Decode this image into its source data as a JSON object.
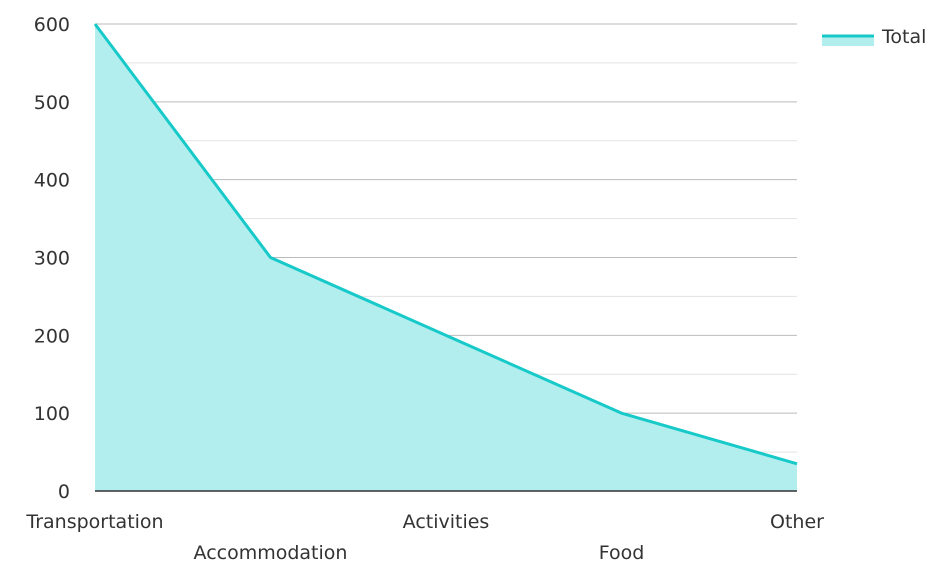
{
  "chart_data": {
    "type": "area",
    "title": "",
    "xlabel": "",
    "ylabel": "",
    "categories": [
      "Transportation",
      "Accommodation",
      "Activities",
      "Food",
      "Other"
    ],
    "series": [
      {
        "name": "Total",
        "values": [
          600,
          300,
          200,
          100,
          35
        ]
      }
    ],
    "ylim": [
      0,
      600
    ],
    "yticks": [
      0,
      100,
      200,
      300,
      400,
      500,
      600
    ],
    "grid": true,
    "legend": "top-right",
    "colors": {
      "line": "#17c9c9",
      "fill": "#b2eeee",
      "grid_major": "#bbbbbb",
      "grid_minor": "#e3e3e3",
      "axis": "#333333"
    }
  }
}
